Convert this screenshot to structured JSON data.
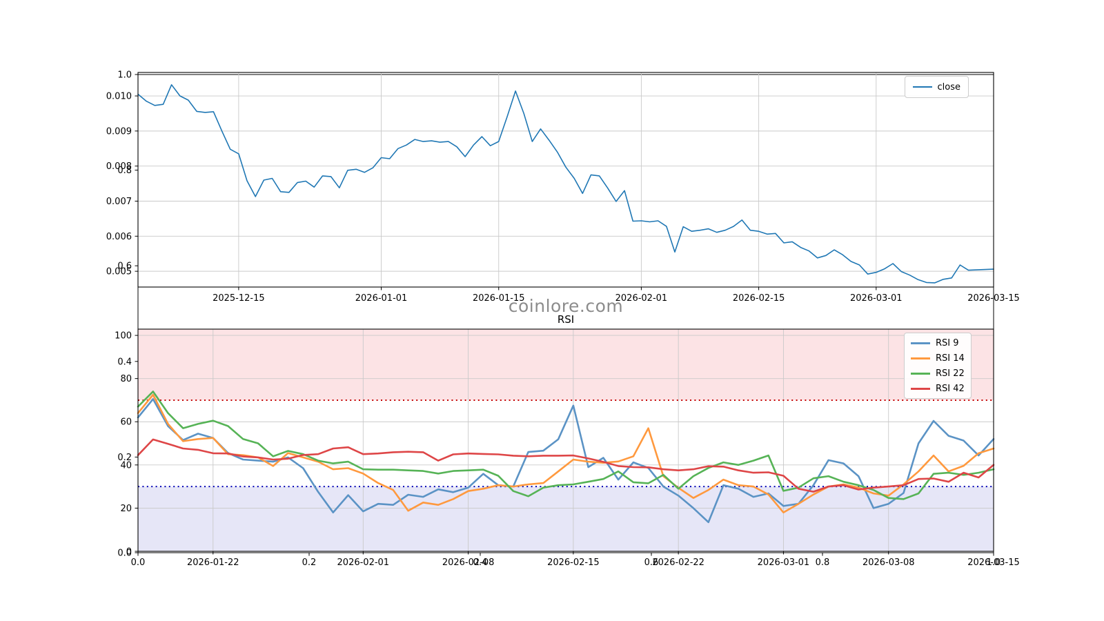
{
  "watermark": {
    "text": "coinlore.com",
    "color": "#8c8c8c"
  },
  "legends": {
    "close": {
      "label": "close",
      "color": "#1f77b4"
    },
    "rsi": [
      {
        "label": "RSI 9",
        "color": "#5b93c5"
      },
      {
        "label": "RSI 14",
        "color": "#ff993e"
      },
      {
        "label": "RSI 22",
        "color": "#56b356"
      },
      {
        "label": "RSI 42",
        "color": "#de4647"
      }
    ]
  },
  "hidden_axes": {
    "x_tick_labels": [
      "0.0",
      "0.2",
      "0.4",
      "0.6",
      "0.8",
      "1.0"
    ],
    "y_tick_labels": [
      "1.0",
      "0.8",
      "0.6",
      "0.4",
      "0.2",
      "0.0"
    ]
  },
  "chart_data": [
    {
      "type": "line",
      "title": "",
      "xlabel": "",
      "ylabel": "",
      "grid": true,
      "legend_position": "upper right",
      "x_start": "2025-12-03",
      "x_end": "2026-03-15",
      "x_tick_labels": [
        "2025-12-15",
        "2026-01-01",
        "2026-01-15",
        "2026-02-01",
        "2026-02-15",
        "2026-03-01",
        "2026-03-15"
      ],
      "x_tick_days": [
        12,
        29,
        43,
        60,
        74,
        88,
        102
      ],
      "y_ticks": [
        0.005,
        0.006,
        0.007,
        0.008,
        0.009,
        0.01
      ],
      "y_tick_labels": [
        "0.005",
        "0.006",
        "0.007",
        "0.008",
        "0.009",
        "0.010"
      ],
      "ylim": [
        0.00455,
        0.01067
      ],
      "series": [
        {
          "name": "close",
          "color": "#1f77b4",
          "width": 1.6,
          "values": [
            0.01005,
            0.00985,
            0.00973,
            0.00976,
            0.01032,
            0.01,
            0.00988,
            0.00956,
            0.00953,
            0.00955,
            0.009,
            0.00848,
            0.00835,
            0.00758,
            0.00713,
            0.0076,
            0.00765,
            0.00727,
            0.00725,
            0.00753,
            0.00757,
            0.0074,
            0.00772,
            0.0077,
            0.00738,
            0.00788,
            0.00791,
            0.00782,
            0.00795,
            0.00824,
            0.00821,
            0.0085,
            0.0086,
            0.00876,
            0.0087,
            0.00872,
            0.00868,
            0.0087,
            0.00855,
            0.00827,
            0.0086,
            0.00884,
            0.00858,
            0.0087,
            0.0094,
            0.01014,
            0.0095,
            0.0087,
            0.00906,
            0.00874,
            0.0084,
            0.00797,
            0.00765,
            0.00722,
            0.00775,
            0.00772,
            0.00737,
            0.00699,
            0.0073,
            0.00643,
            0.00644,
            0.00641,
            0.00644,
            0.00628,
            0.00555,
            0.00627,
            0.00614,
            0.00617,
            0.00621,
            0.00611,
            0.00617,
            0.00628,
            0.00646,
            0.00617,
            0.00614,
            0.00606,
            0.00608,
            0.00581,
            0.00584,
            0.00568,
            0.00558,
            0.00538,
            0.00545,
            0.00561,
            0.00547,
            0.00528,
            0.00518,
            0.00492,
            0.00497,
            0.00507,
            0.00522,
            0.00499,
            0.00489,
            0.00476,
            0.00468,
            0.00467,
            0.00477,
            0.00481,
            0.00518,
            0.00503,
            0.00504,
            0.00505,
            0.00506
          ]
        }
      ]
    },
    {
      "type": "line",
      "title": "RSI",
      "xlabel": "",
      "ylabel": "",
      "grid": true,
      "legend_position": "upper right",
      "x_start": "2026-01-17",
      "x_end": "2026-03-15",
      "x_tick_labels": [
        "2026-01-22",
        "2026-02-01",
        "2026-02-08",
        "2026-02-15",
        "2026-02-22",
        "2026-03-01",
        "2026-03-08",
        "2026-03-15"
      ],
      "x_tick_days": [
        5,
        15,
        22,
        29,
        36,
        43,
        50,
        57
      ],
      "y_ticks": [
        0,
        20,
        40,
        60,
        80,
        100
      ],
      "y_tick_labels": [
        "0",
        "20",
        "40",
        "60",
        "80",
        "100"
      ],
      "ylim": [
        0,
        102.9
      ],
      "hlines": [
        {
          "y": 70,
          "color": "#c40000",
          "style": "dotted"
        },
        {
          "y": 30,
          "color": "#0000b4",
          "style": "dotted"
        }
      ],
      "spans": [
        {
          "from": 70,
          "to": 102.9,
          "color": "#fce3e5",
          "name": "overbought-band"
        },
        {
          "from": 0,
          "to": 30,
          "color": "#e6e6f7",
          "name": "oversold-band"
        }
      ],
      "series": [
        {
          "name": "RSI 9",
          "color": "#5b93c5",
          "width": 2.6,
          "values": [
            62,
            70.5,
            58,
            51.5,
            54.5,
            52.5,
            45.5,
            42.5,
            42,
            41.5,
            43.5,
            38.5,
            27.5,
            18,
            26,
            18.5,
            22,
            21.5,
            26.2,
            25.2,
            28.7,
            27.4,
            29.5,
            35.9,
            30.6,
            30,
            46,
            46.6,
            51.9,
            67.5,
            39,
            43.3,
            33.2,
            41.2,
            38.6,
            30,
            25.8,
            20,
            13.5,
            30.6,
            29,
            25.2,
            26.8,
            21,
            22,
            30.6,
            42.2,
            40.7,
            34.8,
            20,
            22,
            27,
            50,
            60.4,
            53.5,
            51.3,
            44.4,
            52
          ]
        },
        {
          "name": "RSI 14",
          "color": "#ff993e",
          "width": 2.6,
          "values": [
            64,
            72.5,
            59,
            51,
            52,
            52.5,
            45,
            44.5,
            43.5,
            39.5,
            45.5,
            43.5,
            41.5,
            38,
            38.5,
            36,
            31.6,
            28.4,
            18.8,
            22.6,
            21.5,
            24.2,
            27.9,
            29,
            30.6,
            30,
            31,
            31.6,
            37,
            42.5,
            41.5,
            41,
            41.6,
            44,
            57,
            34.8,
            29.4,
            24.7,
            28.4,
            33.2,
            30.6,
            30,
            26.3,
            18,
            22,
            26.3,
            30,
            31,
            29.5,
            26.8,
            25.8,
            31,
            37,
            44.4,
            37,
            39.6,
            45.4,
            47.6
          ]
        },
        {
          "name": "RSI 22",
          "color": "#56b356",
          "width": 2.6,
          "values": [
            67,
            74,
            64,
            57,
            59,
            60.5,
            58,
            52,
            50,
            44,
            46.5,
            45,
            42,
            40.7,
            41.5,
            38,
            37.8,
            37.8,
            37.5,
            37.2,
            36,
            37.2,
            37.5,
            37.8,
            35,
            27.9,
            25.5,
            29.5,
            30.6,
            31,
            32.2,
            33.5,
            37,
            32,
            31.5,
            35.4,
            29,
            34.8,
            38.6,
            41.2,
            40,
            42,
            44.4,
            28,
            29.5,
            33.8,
            34.8,
            32.2,
            30.6,
            28.4,
            24.7,
            24.2,
            26.8,
            35.9,
            36.4,
            35.4,
            36.4,
            38
          ]
        },
        {
          "name": "RSI 42",
          "color": "#de4647",
          "width": 2.6,
          "values": [
            44.5,
            51.8,
            49.8,
            47.6,
            47,
            45.4,
            45.3,
            43.9,
            43.5,
            42.5,
            42.9,
            44.6,
            45,
            47.6,
            48.2,
            45,
            45.3,
            45.9,
            46.1,
            45.9,
            42,
            44.9,
            45.3,
            45.1,
            44.9,
            44.3,
            44,
            44.3,
            44.3,
            44.4,
            43,
            41.4,
            39.5,
            39,
            38.9,
            38,
            37.5,
            38,
            39.4,
            39.2,
            37.5,
            36.4,
            36.6,
            35,
            29,
            27.6,
            30,
            30.6,
            28.6,
            29.5,
            30,
            30.6,
            33.5,
            33.7,
            32.2,
            36.4,
            34.2,
            40
          ]
        }
      ]
    }
  ]
}
